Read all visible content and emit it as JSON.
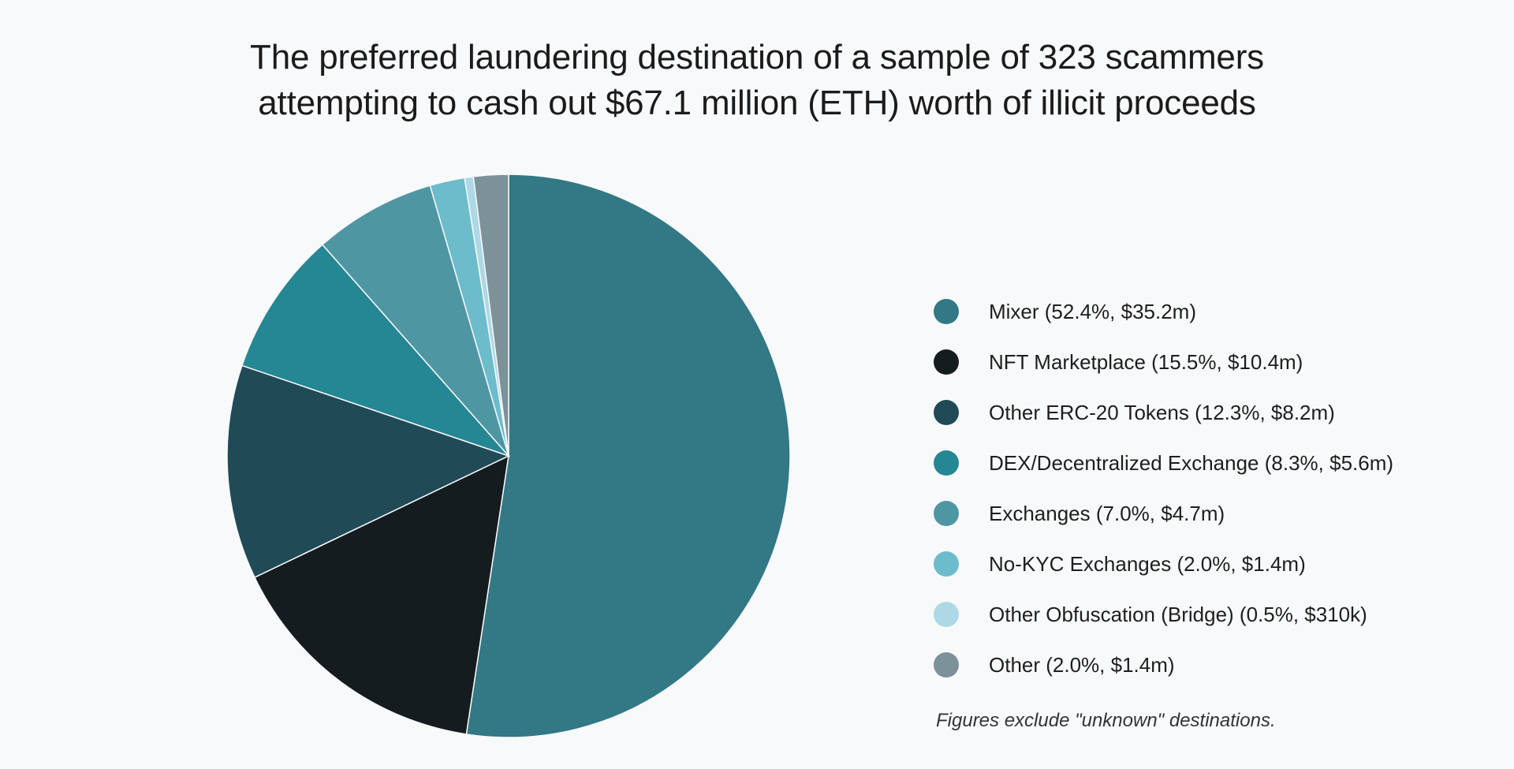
{
  "chart_data": {
    "type": "pie",
    "title_lines": [
      "The preferred laundering destination of a sample of 323 scammers",
      "attempting to cash out $67.1 million (ETH) worth of illicit proceeds"
    ],
    "slices": [
      {
        "name": "Mixer",
        "percent": 52.4,
        "amount": "$35.2m",
        "label": "Mixer (52.4%, $35.2m)",
        "color": "#327885"
      },
      {
        "name": "NFT Marketplace",
        "percent": 15.5,
        "amount": "$10.4m",
        "label": "NFT Marketplace  (15.5%, $10.4m)",
        "color": "#151c20"
      },
      {
        "name": "Other ERC-20 Tokens",
        "percent": 12.3,
        "amount": "$8.2m",
        "label": "Other ERC-20 Tokens (12.3%, $8.2m)",
        "color": "#214a57"
      },
      {
        "name": "DEX/Decentralized Exchange",
        "percent": 8.3,
        "amount": "$5.6m",
        "label": "DEX/Decentralized Exchange (8.3%, $5.6m)",
        "color": "#248793"
      },
      {
        "name": "Exchanges",
        "percent": 7.0,
        "amount": "$4.7m",
        "label": "Exchanges (7.0%, $4.7m)",
        "color": "#4f96a3"
      },
      {
        "name": "No-KYC Exchanges",
        "percent": 2.0,
        "amount": "$1.4m",
        "label": "No-KYC Exchanges (2.0%, $1.4m)",
        "color": "#6cbccb"
      },
      {
        "name": "Other Obfuscation (Bridge)",
        "percent": 0.5,
        "amount": "$310k",
        "label": "Other Obfuscation (Bridge) (0.5%, $310k)",
        "color": "#acd9e5"
      },
      {
        "name": "Other",
        "percent": 2.0,
        "amount": "$1.4m",
        "label": "Other (2.0%, $1.4m)",
        "color": "#7d9298"
      }
    ],
    "start_angle_deg": 0,
    "direction": "clockwise",
    "legend_position": "right",
    "footnote": "Figures exclude \"unknown\" destinations."
  }
}
